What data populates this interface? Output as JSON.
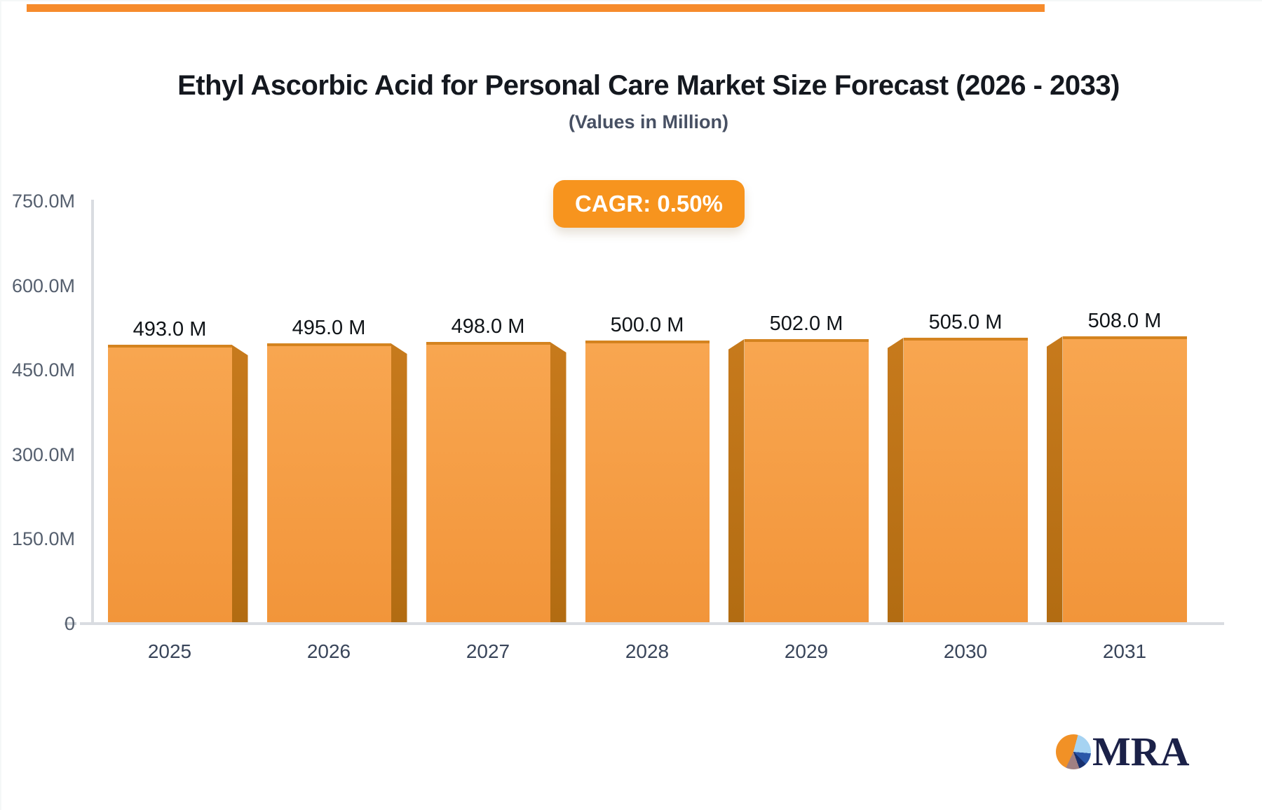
{
  "page": {
    "top_accent_color": "#f68b2c",
    "background": "#ffffff"
  },
  "header": {
    "title": "Ethyl Ascorbic Acid for Personal Care Market Size Forecast (2026 - 2033)",
    "subtitle": "(Values in Million)"
  },
  "badge": {
    "label": "CAGR: 0.50%",
    "bg_color": "#f7941e",
    "text_color": "#ffffff"
  },
  "chart_data": {
    "type": "bar",
    "title": "Ethyl Ascorbic Acid for Personal Care Market Size Forecast (2026 - 2033)",
    "subtitle": "(Values in Million)",
    "categories": [
      "2025",
      "2026",
      "2027",
      "2028",
      "2029",
      "2030",
      "2031"
    ],
    "values": [
      493.0,
      495.0,
      498.0,
      500.0,
      502.0,
      505.0,
      508.0
    ],
    "value_labels": [
      "493.0 M",
      "495.0 M",
      "498.0 M",
      "500.0 M",
      "502.0 M",
      "505.0 M",
      "508.0 M"
    ],
    "y_ticks": [
      "750.0M",
      "600.0M",
      "450.0M",
      "300.0M",
      "150.0M",
      "0"
    ],
    "ylim": [
      0,
      750
    ],
    "xlabel": "",
    "ylabel": "",
    "grid": false,
    "legend": "none",
    "bar_style": "3d-orange"
  },
  "colors": {
    "bar_top": "#f8a650",
    "bar_bottom": "#f2953a",
    "bar_rim": "#d4831f",
    "side_top": "#c77a1c",
    "side_bottom": "#b26c12",
    "axis_line": "#d9dce1"
  },
  "logo": {
    "text": "MRA",
    "text_color": "#1b2148",
    "pie_orange": "#f19126",
    "pie_lightblue": "#a6d3f2",
    "pie_blue": "#2b57a8",
    "pie_navy": "#17306e",
    "pie_mauve": "#a08083"
  }
}
